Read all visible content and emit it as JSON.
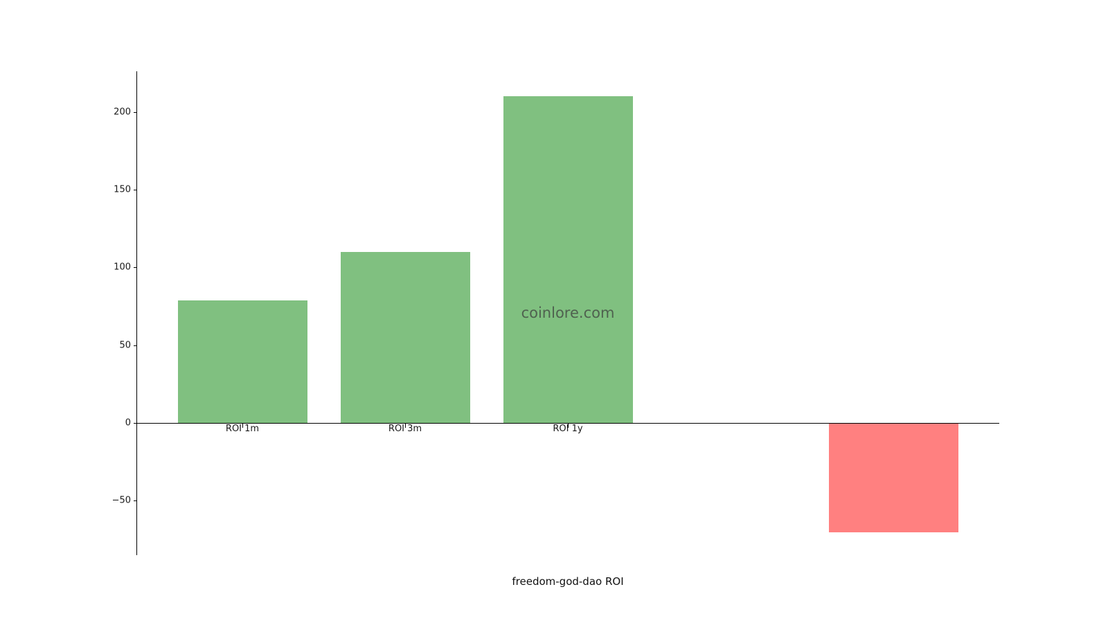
{
  "watermark": "coinlore.com",
  "chart_data": {
    "type": "bar",
    "title": "",
    "xlabel": "freedom-god-dao ROI",
    "ylabel": "",
    "categories": [
      "ROI 1m",
      "ROI 3m",
      "ROI 1y",
      "",
      ""
    ],
    "values": [
      79,
      110,
      210,
      0,
      -70
    ],
    "y_ticks": [
      200,
      150,
      100,
      50,
      0,
      -50
    ],
    "ylim": [
      -85,
      226
    ],
    "grid": false,
    "legend_position": "none",
    "positive_color": "#80c080",
    "negative_color": "#ff8080",
    "axis_color": "#000000",
    "tick_label_color": "#1a1a1a"
  }
}
